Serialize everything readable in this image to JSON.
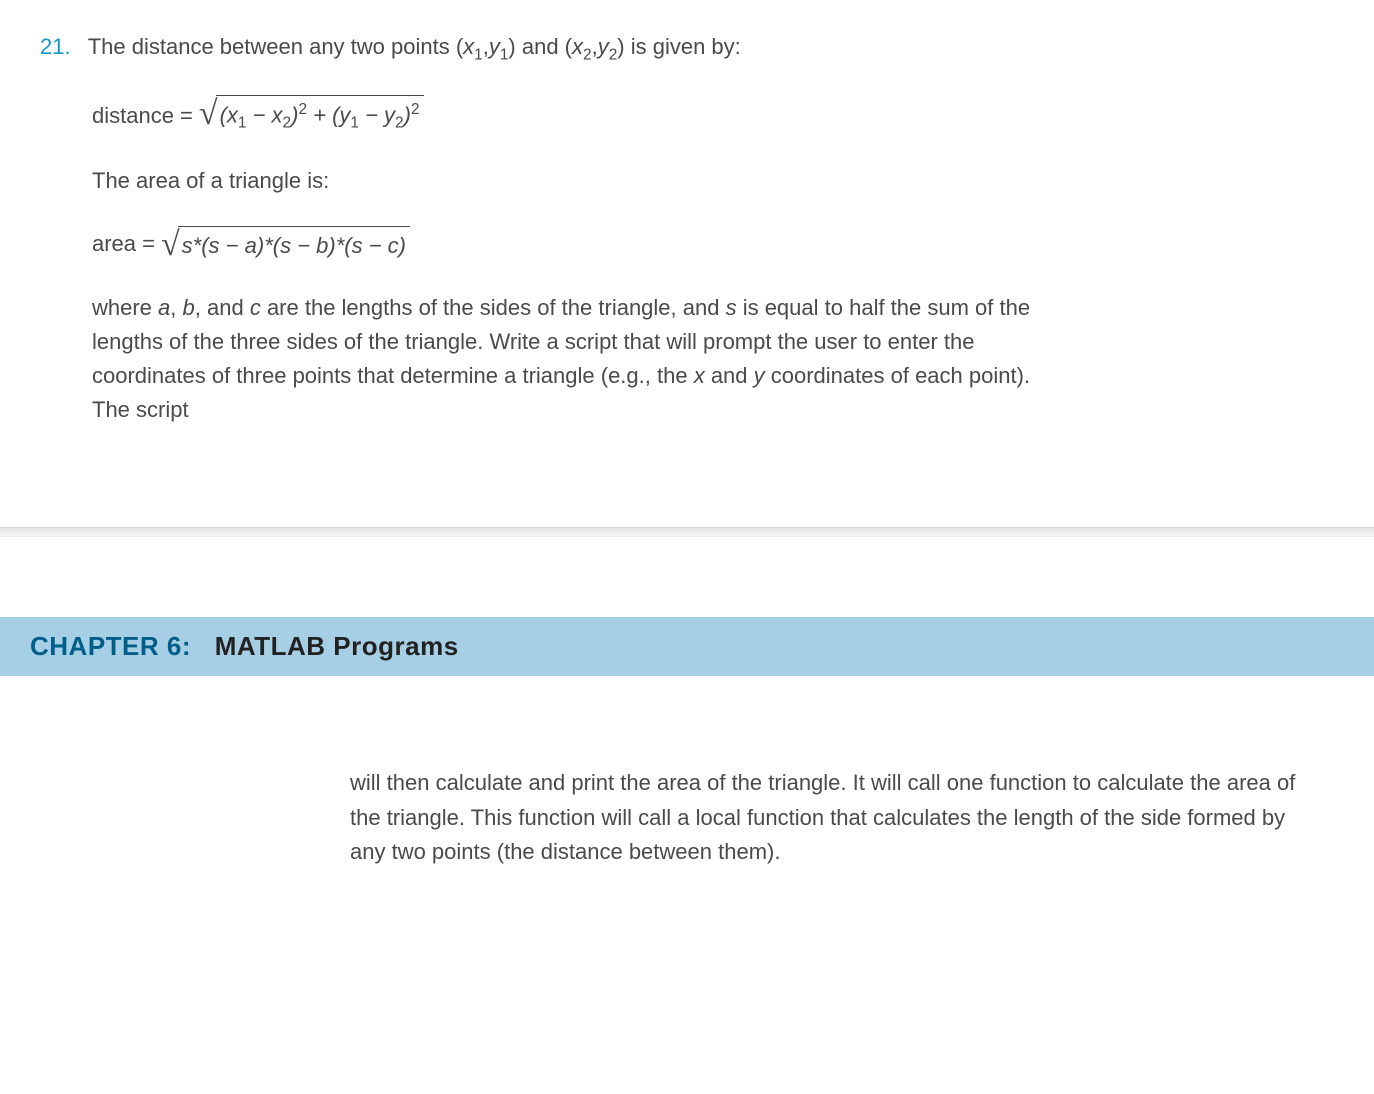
{
  "question": {
    "number": "21.",
    "intro_html": "The distance between any two points (<span class=\"ital\">x</span><sub>1</sub>,<span class=\"ital\">y</span><sub>1</sub>) and (<span class=\"ital\">x</span><sub>2</sub>,<span class=\"ital\">y</span><sub>2</sub>) is given by:"
  },
  "formula1": {
    "lhs": "distance =",
    "radicand_html": "(x<sub>1</sub> − x<sub>2</sub>)<sup>2</sup> + (y<sub>1</sub> − y<sub>2</sub>)<sup>2</sup>"
  },
  "mid_text": "The area of a triangle is:",
  "formula2": {
    "lhs": "area =",
    "radicand_html": "s*(s − a)*(s − b)*(s − c)"
  },
  "body_html": "where <span class=\"ital\">a</span>, <span class=\"ital\">b</span>, and <span class=\"ital\">c</span> are the lengths of the sides of the triangle, and <span class=\"ital\">s</span> is equal to half the sum of the lengths of the three sides of the triangle. Write a script that will prompt the user to enter the coordinates of three points that determine a triangle (e.g., the <span class=\"ital\">x</span> and <span class=\"ital\">y</span> coordinates of each point). The script",
  "chapter": {
    "label": "CHAPTER 6:",
    "title": "MATLAB Programs"
  },
  "continuation": "will then calculate and print the area of the triangle. It will call one function to calculate the area of the triangle. This function will call a local function that calculates the length of the side formed by any two points (the distance between them).",
  "colors": {
    "qnum": "#1199cc",
    "text": "#4a4a4a",
    "chapter_bg": "#a6cfe6",
    "chapter_label": "#005e8a",
    "divider_top": "#e4e4e4"
  }
}
